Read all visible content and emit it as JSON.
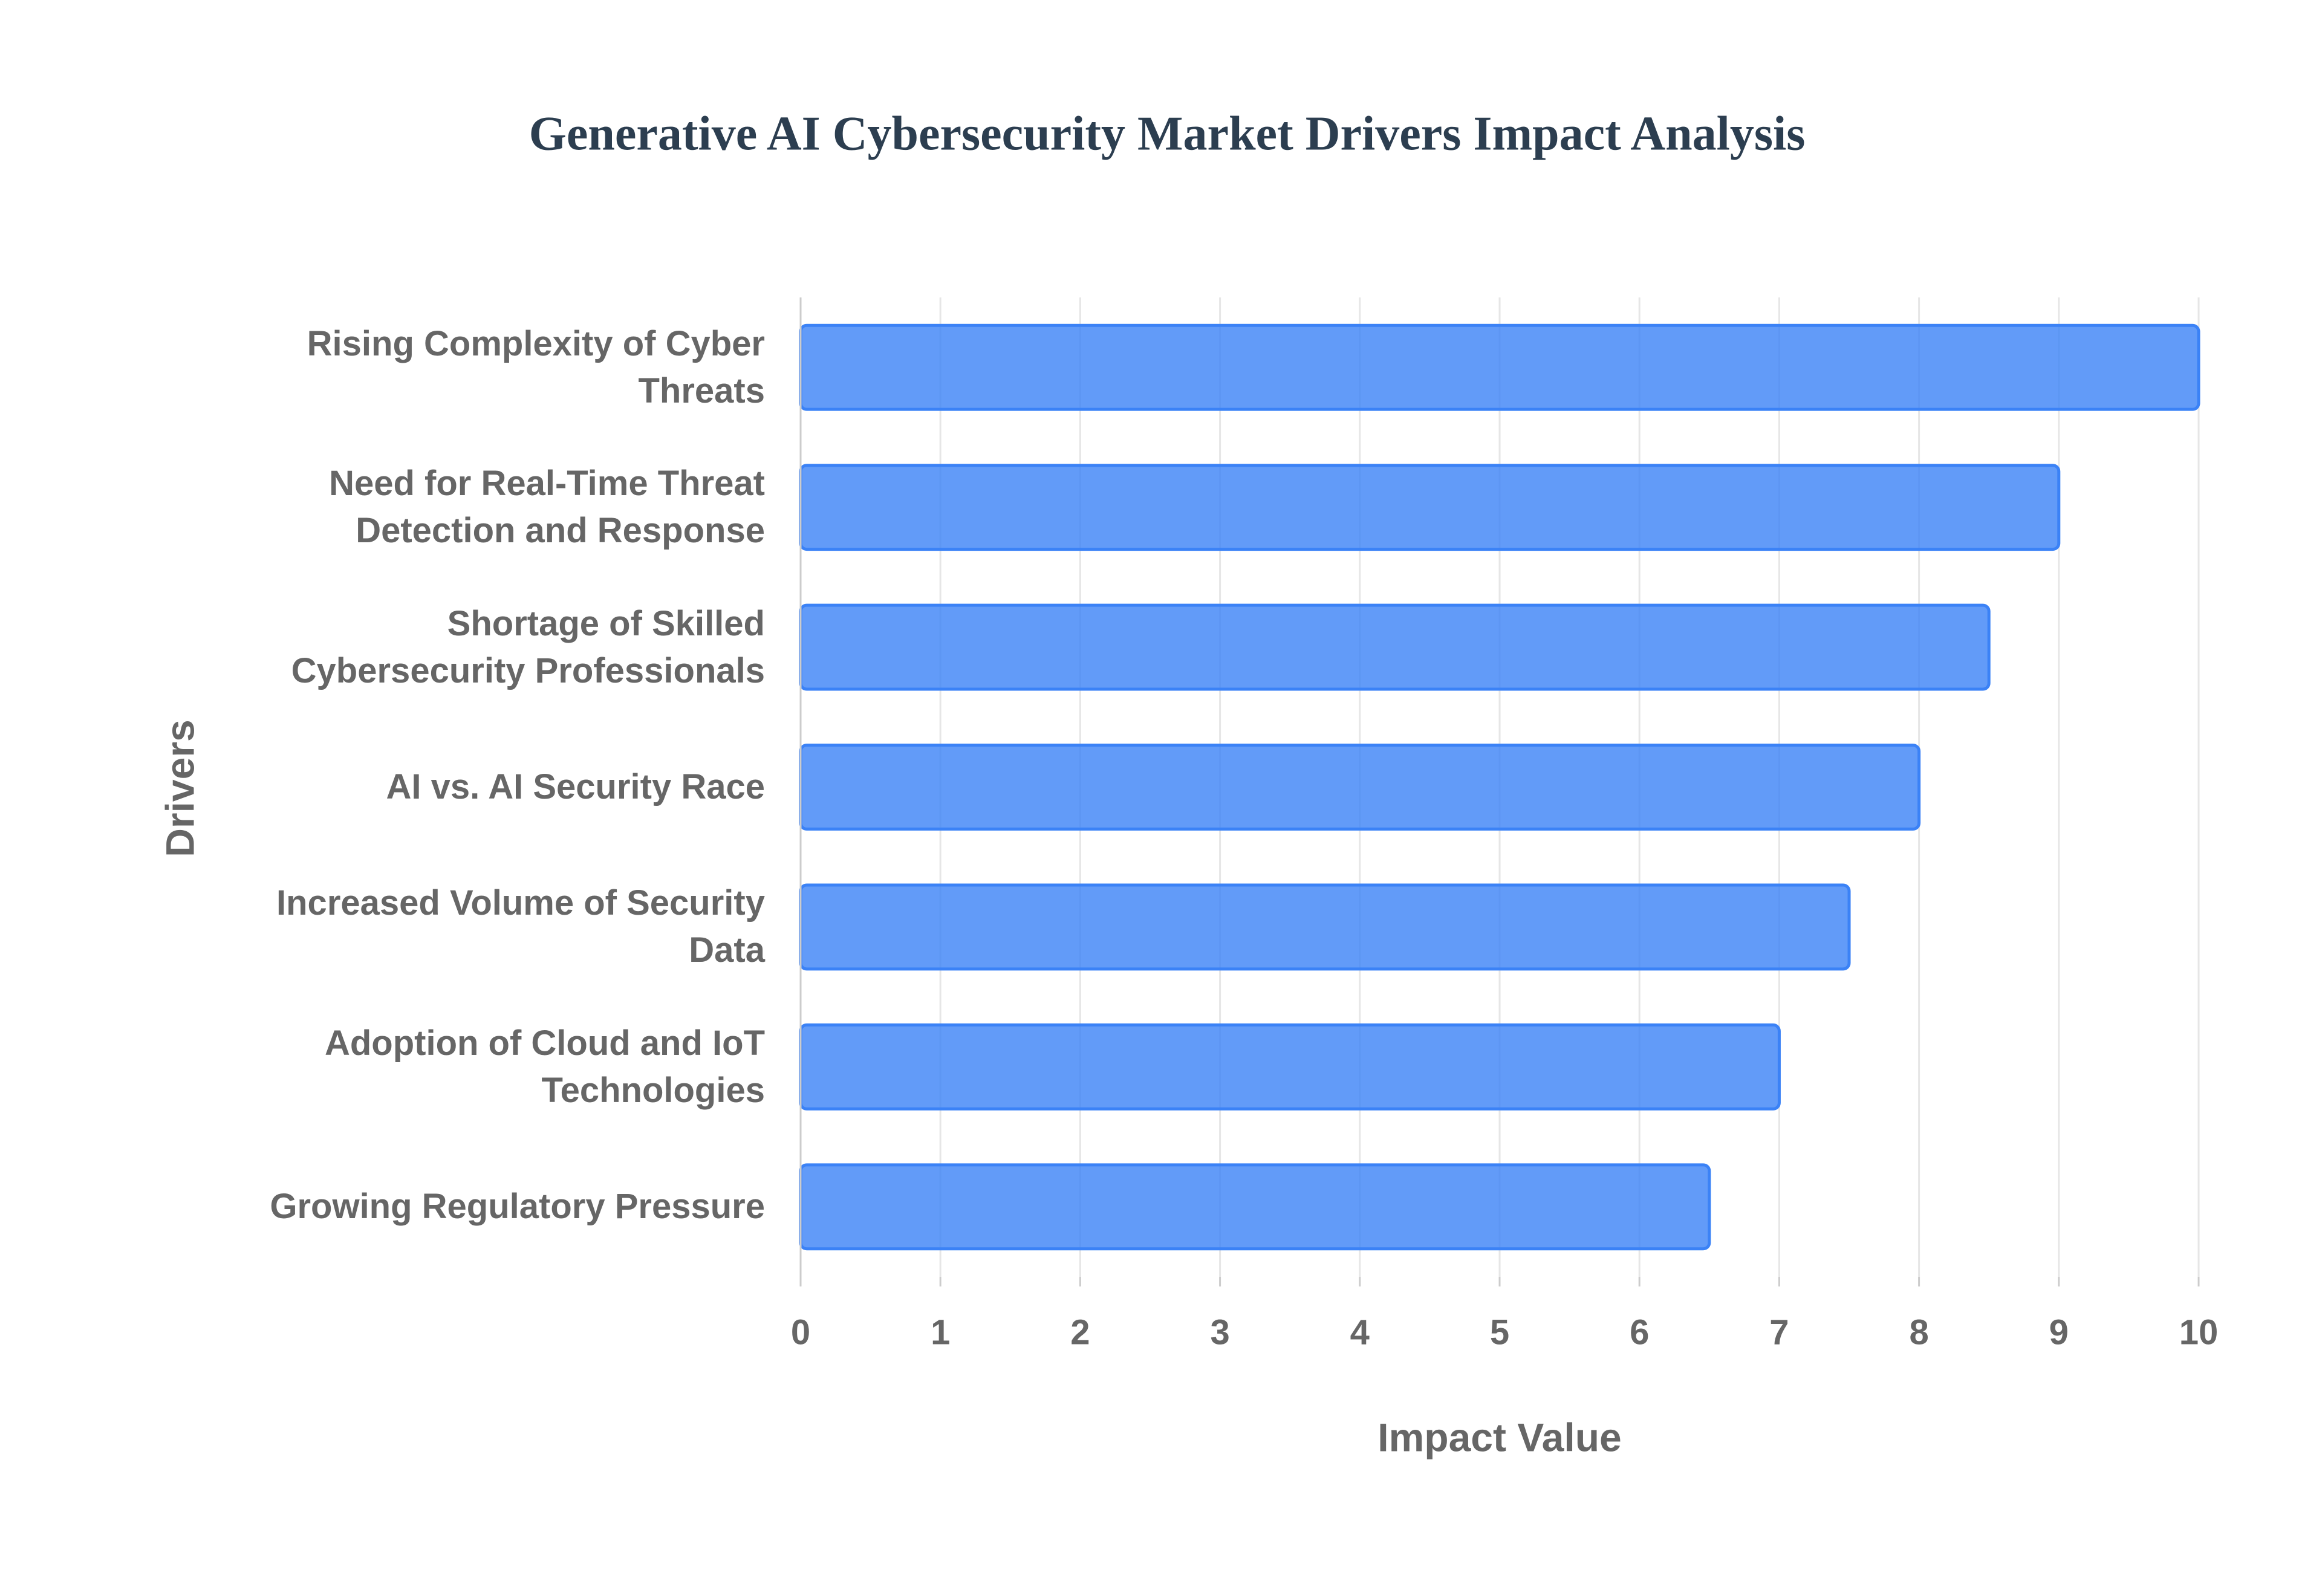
{
  "chart_data": {
    "type": "bar",
    "orientation": "horizontal",
    "title": "Generative AI Cybersecurity Market Drivers Impact Analysis",
    "x_label": "Impact Value",
    "y_label": "Drivers",
    "categories": [
      "Rising Complexity of Cyber Threats",
      "Need for Real-Time Threat Detection and Response",
      "Shortage of Skilled Cybersecurity Professionals",
      "AI vs. AI Security Race",
      "Increased Volume of Security Data",
      "Adoption of Cloud and IoT Technologies",
      "Growing Regulatory Pressure"
    ],
    "values": [
      10,
      9,
      8.5,
      8,
      7.5,
      7,
      6.5
    ],
    "color": "#3b82f6",
    "xlim": [
      0,
      10
    ],
    "xticks": [
      0,
      1,
      2,
      3,
      4,
      5,
      6,
      7,
      8,
      9,
      10
    ],
    "grid": true
  }
}
